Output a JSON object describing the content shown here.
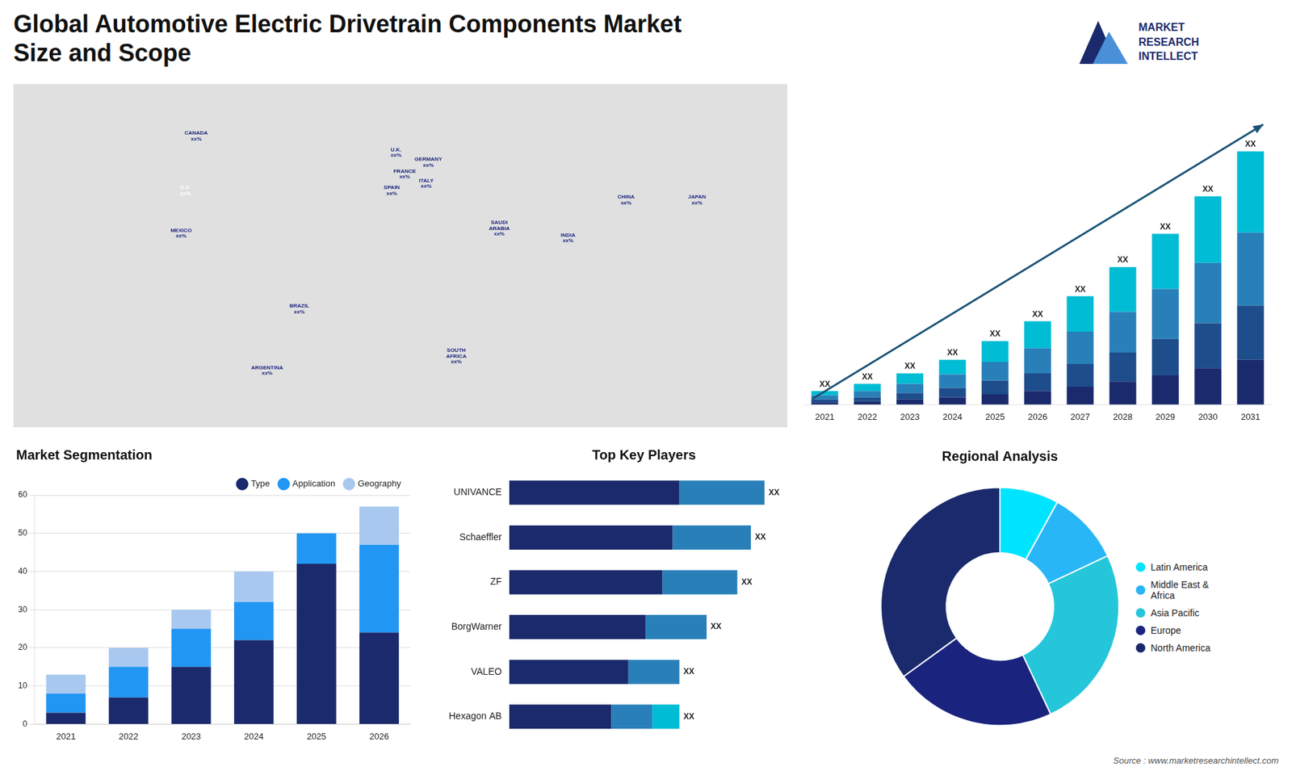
{
  "title": "Global Automotive Electric Drivetrain Components Market\nSize and Scope",
  "annotations": [
    {
      "text": "MARKET"
    },
    {
      "text": "RESEARCH"
    },
    {
      "text": "INTELLECT"
    },
    {
      "text": "Source : www.marketresearchintellect.com"
    }
  ],
  "chart_data": [
    {
      "type": "map",
      "xlim": [
        -180,
        180
      ],
      "ylim": [
        -60,
        85
      ],
      "tick_labels": false,
      "grid": false,
      "annotations": [
        {
          "text": "U.S.\nxx%",
          "x": -100,
          "y": 40,
          "color": "#ffffff"
        },
        {
          "text": "CANADA\nxx%",
          "x": -95,
          "y": 63,
          "color": "#1a237e"
        },
        {
          "text": "MEXICO\nxx%",
          "x": -102,
          "y": 22,
          "color": "#1a237e"
        },
        {
          "text": "BRAZIL\nxx%",
          "x": -47,
          "y": -10,
          "color": "#1a237e"
        },
        {
          "text": "ARGENTINA\nxx%",
          "x": -62,
          "y": -36,
          "color": "#1a237e"
        },
        {
          "text": "U.K.\nxx%",
          "x": -2,
          "y": 56,
          "color": "#1a237e"
        },
        {
          "text": "FRANCE\nxx%",
          "x": 2,
          "y": 47,
          "color": "#1a237e"
        },
        {
          "text": "SPAIN\nxx%",
          "x": -4,
          "y": 40,
          "color": "#1a237e"
        },
        {
          "text": "GERMANY\nxx%",
          "x": 13,
          "y": 52,
          "color": "#1a237e"
        },
        {
          "text": "ITALY\nxx%",
          "x": 12,
          "y": 43,
          "color": "#1a237e"
        },
        {
          "text": "SAUDI\nARABIA\nxx%",
          "x": 46,
          "y": 24,
          "color": "#1a237e"
        },
        {
          "text": "SOUTH\nAFRICA\nxx%",
          "x": 26,
          "y": -30,
          "color": "#1a237e"
        },
        {
          "text": "CHINA\nxx%",
          "x": 105,
          "y": 36,
          "color": "#1a237e"
        },
        {
          "text": "INDIA\nxx%",
          "x": 78,
          "y": 20,
          "color": "#1a237e"
        },
        {
          "text": "JAPAN\nxx%",
          "x": 138,
          "y": 36,
          "color": "#1a237e"
        }
      ]
    },
    {
      "type": "bar",
      "stacked": true,
      "categories": [
        "2021",
        "2022",
        "2023",
        "2024",
        "2025",
        "2026",
        "2027",
        "2028",
        "2029",
        "2030",
        "2031"
      ],
      "series": [
        {
          "color": "#1a2a6c",
          "values": [
            2,
            3,
            5,
            7,
            10,
            13,
            17,
            22,
            28,
            35,
            43
          ]
        },
        {
          "color": "#1e4d8c",
          "values": [
            3,
            4,
            6,
            9,
            13,
            17,
            22,
            28,
            35,
            43,
            52
          ]
        },
        {
          "color": "#2980b9",
          "values": [
            4,
            6,
            9,
            13,
            18,
            24,
            31,
            39,
            48,
            58,
            70
          ]
        },
        {
          "color": "#00bcd4",
          "values": [
            4,
            7,
            10,
            14,
            20,
            26,
            34,
            43,
            53,
            64,
            78
          ]
        }
      ],
      "ylim": [
        0,
        303.75
      ],
      "tick_labels": "x",
      "grid": false,
      "annotations": [
        {
          "text": "XX",
          "x": "2021"
        },
        {
          "text": "XX",
          "x": "2022"
        },
        {
          "text": "XX",
          "x": "2023"
        },
        {
          "text": "XX",
          "x": "2024"
        },
        {
          "text": "XX",
          "x": "2025"
        },
        {
          "text": "XX",
          "x": "2026"
        },
        {
          "text": "XX",
          "x": "2027"
        },
        {
          "text": "XX",
          "x": "2028"
        },
        {
          "text": "XX",
          "x": "2029"
        },
        {
          "text": "XX",
          "x": "2030"
        },
        {
          "text": "XX",
          "x": "2031"
        }
      ]
    },
    {
      "type": "bar",
      "stacked": true,
      "title": "Market Segmentation",
      "categories": [
        "2021",
        "2022",
        "2023",
        "2024",
        "2025",
        "2026"
      ],
      "series": [
        {
          "name": "Type",
          "color": "#1a2a6c",
          "values": [
            3,
            7,
            15,
            22,
            42,
            24
          ]
        },
        {
          "name": "Application",
          "color": "#2196F3",
          "values": [
            5,
            8,
            10,
            10,
            8,
            23
          ]
        },
        {
          "name": "Geography",
          "color": "#a8c8f0",
          "values": [
            5,
            5,
            5,
            8,
            0,
            10
          ]
        }
      ],
      "ylim": [
        0,
        60
      ],
      "yticks": [
        0,
        10,
        20,
        30,
        40,
        50,
        60
      ],
      "grid": true,
      "legend": "upper right"
    },
    {
      "type": "bar",
      "orientation": "horizontal",
      "stacked": true,
      "title": "Top Key Players",
      "categories": [
        "UNIVANCE",
        "Schaeffler",
        "ZF",
        "BorgWarner",
        "VALEO",
        "Hexagon AB"
      ],
      "series": [
        {
          "color": "#1a2a6c",
          "values": [
            5,
            4.8,
            4.5,
            4.0,
            3.5,
            3.0
          ]
        },
        {
          "color": "#2980b9",
          "values": [
            2.5,
            2.3,
            2.2,
            1.8,
            1.5,
            1.2
          ]
        },
        {
          "color": "#00bcd4",
          "values": [
            0,
            0,
            0,
            0,
            0,
            0.8
          ]
        }
      ],
      "xlim": [
        0,
        9.75
      ],
      "tick_labels": "y",
      "grid": false,
      "annotations": [
        {
          "text": "XX",
          "y": "UNIVANCE"
        },
        {
          "text": "XX",
          "y": "Schaeffler"
        },
        {
          "text": "XX",
          "y": "ZF"
        },
        {
          "text": "XX",
          "y": "BorgWarner"
        },
        {
          "text": "XX",
          "y": "VALEO"
        },
        {
          "text": "XX",
          "y": "Hexagon AB"
        }
      ]
    },
    {
      "type": "doughnut",
      "title": "Regional Analysis",
      "categories": [
        "Latin America",
        "Middle East &\nAfrica",
        "Asia Pacific",
        "Europe",
        "North America"
      ],
      "values": [
        8,
        10,
        25,
        22,
        35
      ],
      "colors": [
        "#00e5ff",
        "#29b6f6",
        "#26c6da",
        "#1a237e",
        "#1a2a6c"
      ],
      "legend": "right"
    }
  ]
}
